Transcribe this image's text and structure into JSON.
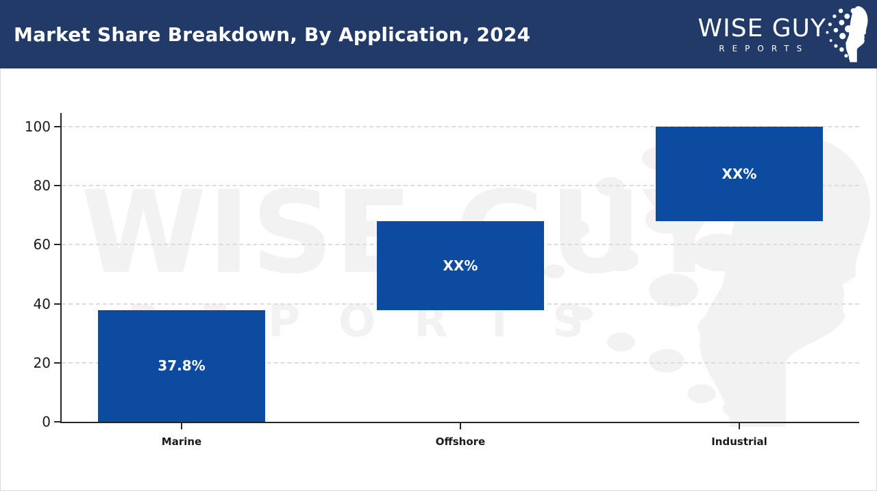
{
  "header": {
    "title": "Market Share Breakdown, By Application, 2024",
    "logo": {
      "line1": "WISE GUY",
      "line2": "REPORTS"
    }
  },
  "watermark": {
    "line1": "WISE GUY",
    "line2": "REPORTS"
  },
  "colors": {
    "header_navy": "#213A68",
    "bar_blue": "#0C4BA0",
    "grid_gray": "#dcdcdc",
    "axis_black": "#262626",
    "watermark_gray": "#f2f2f3",
    "bar_label_white": "#ffffff",
    "page_border_gray": "#d9d9d9"
  },
  "chart_data": {
    "type": "bar",
    "subtype": "waterfall",
    "title": "Market Share Breakdown, By Application, 2024",
    "categories": [
      "Marine",
      "Offshore",
      "Industrial"
    ],
    "segments": [
      {
        "category": "Marine",
        "start": 0,
        "end": 37.8,
        "label": "37.8%"
      },
      {
        "category": "Offshore",
        "start": 37.8,
        "end": 68,
        "label": "XX%"
      },
      {
        "category": "Industrial",
        "start": 68,
        "end": 100,
        "label": "XX%"
      }
    ],
    "unit": "%",
    "yticks": [
      0,
      20,
      40,
      60,
      80,
      100
    ],
    "ylim": [
      0,
      104.5
    ],
    "xlabel": "",
    "ylabel": "",
    "grid": "horizontal-dashed",
    "legend": false,
    "bar_color": "#0C4BA0",
    "label_color": "#ffffff"
  }
}
